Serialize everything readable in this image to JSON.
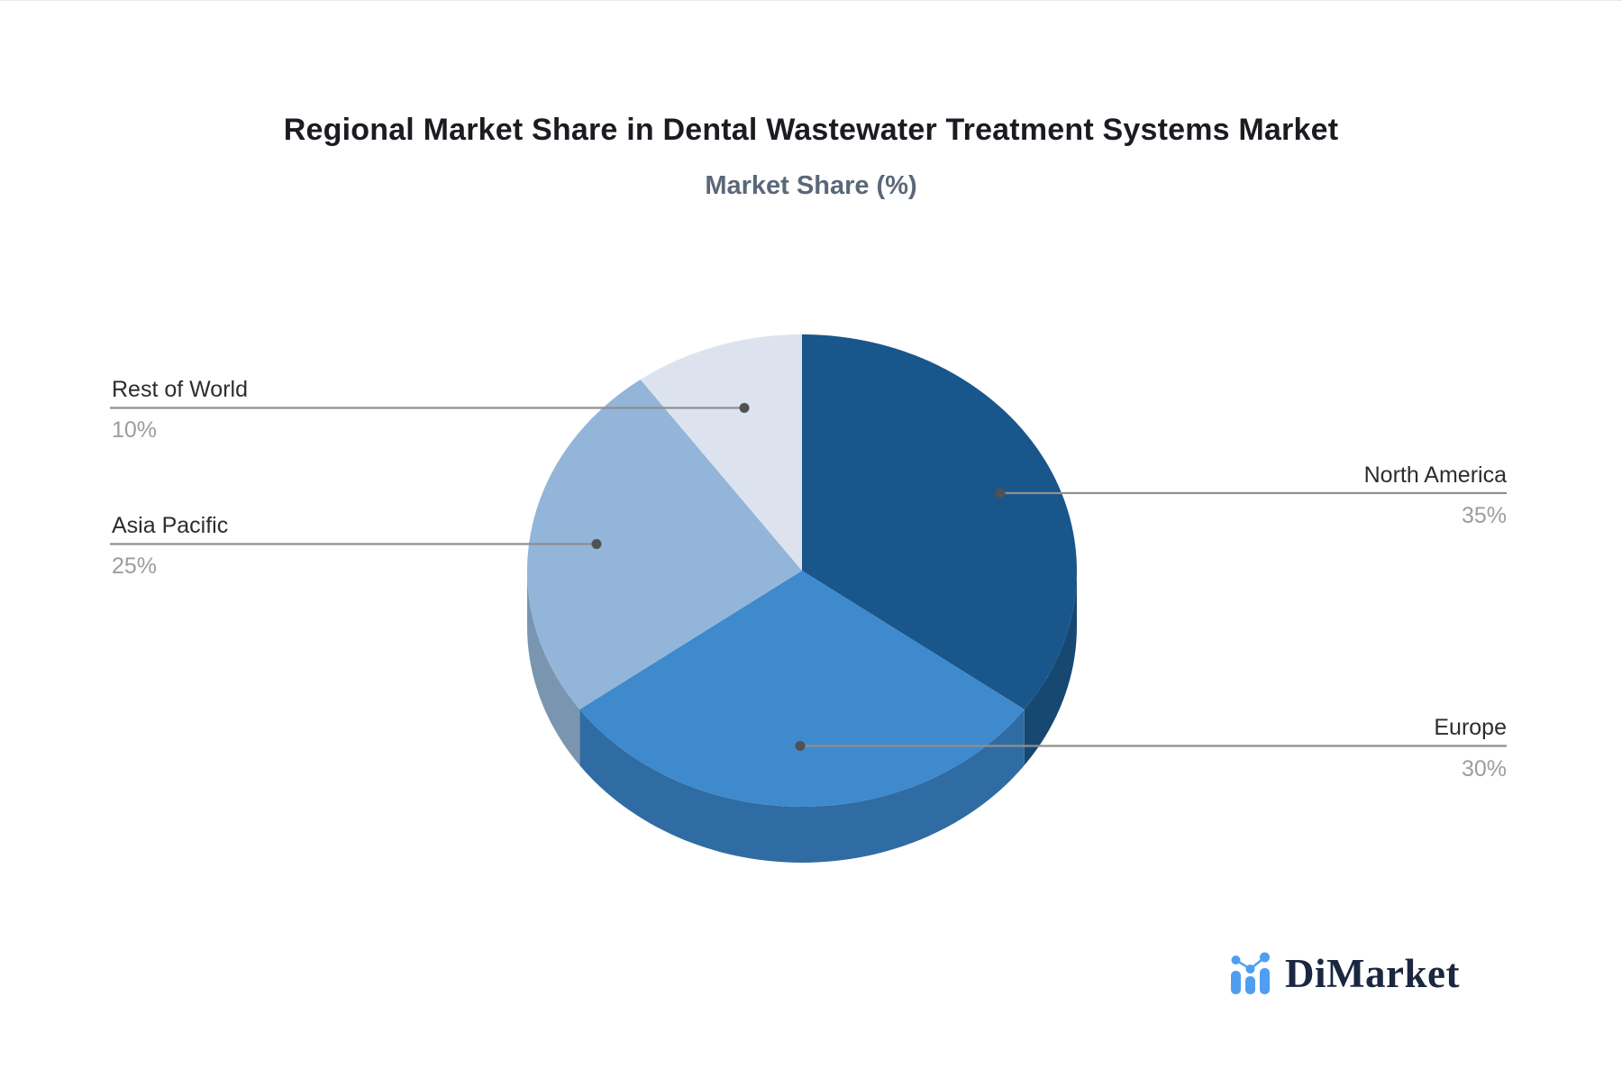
{
  "chart_data": {
    "type": "pie",
    "style": "3d",
    "title": "Regional Market Share in Dental Wastewater Treatment Systems Market",
    "subtitle": "Market Share (%)",
    "unit": "%",
    "direction": "clockwise",
    "start_angle_deg": 0,
    "legend_position": "callout-labels",
    "slices": [
      {
        "label": "North America",
        "value": 35,
        "pct_label": "35%",
        "color": "#19568c",
        "side_color": "#164872"
      },
      {
        "label": "Europe",
        "value": 30,
        "pct_label": "30%",
        "color": "#3e8acd",
        "side_color": "#2f6ca3"
      },
      {
        "label": "Asia Pacific",
        "value": 25,
        "pct_label": "25%",
        "color": "#92b5d9",
        "side_color": "#7a95b0"
      },
      {
        "label": "Rest of World",
        "value": 10,
        "pct_label": "10%",
        "color": "#dde3ee",
        "side_color": "#c6ccd8"
      }
    ]
  },
  "brand": {
    "name": "DiMarket",
    "icon": "bar-line-chart-logo-icon",
    "accent_color": "#4f9ef0",
    "text_color": "#1b2740"
  },
  "colors": {
    "background": "#ffffff",
    "title": "#1a1c21",
    "subtitle": "#5a6878",
    "label_text": "#2b2d31",
    "percent_text": "#9b9da1",
    "leader_line": "#8f8f8f",
    "leader_dot": "#515151"
  }
}
